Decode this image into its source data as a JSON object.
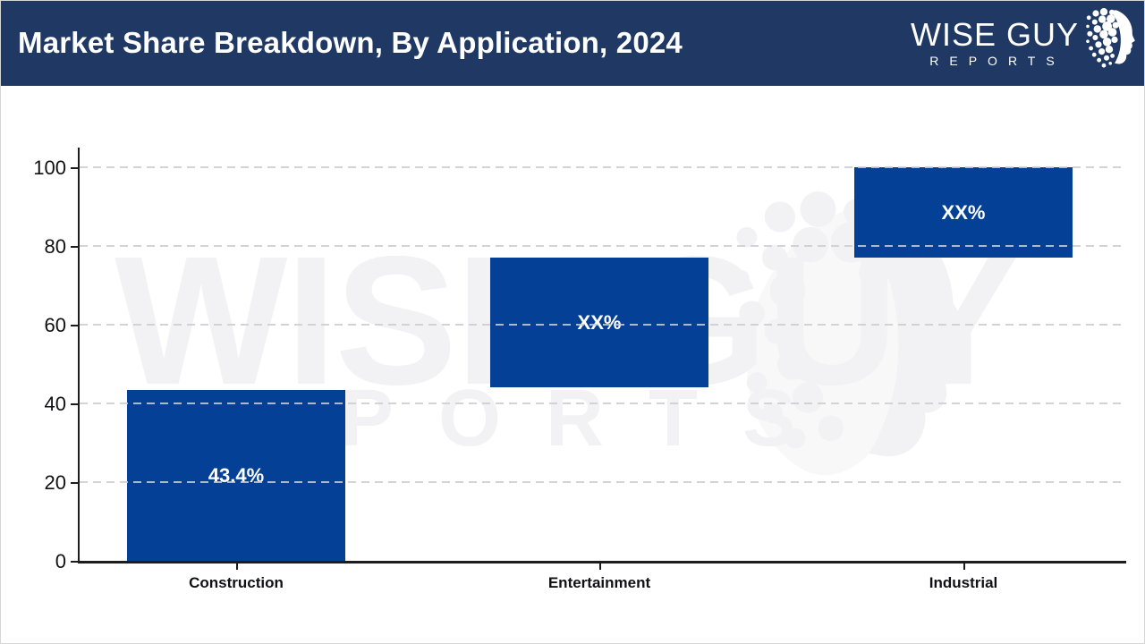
{
  "header": {
    "title": "Market Share Breakdown, By Application, 2024",
    "bg_color": "#1f3864",
    "logo": {
      "line1": "WISE GUY",
      "line2": "REPORTS"
    }
  },
  "watermark": {
    "line1": "WISE GUY",
    "line2": "REPORTS"
  },
  "chart_data": {
    "type": "bar",
    "subtype": "floating-waterfall-bars",
    "title": "Market Share Breakdown, By Application, 2024",
    "categories": [
      "Construction",
      "Entertainment",
      "Industrial"
    ],
    "series": [
      {
        "name": "Market Share (%)",
        "ranges": [
          [
            0,
            43.4
          ],
          [
            44,
            77
          ],
          [
            77,
            100
          ]
        ],
        "labels": [
          "43.4%",
          "XX%",
          "XX%"
        ]
      }
    ],
    "xlabel": "",
    "ylabel": "",
    "ylim": [
      0,
      105
    ],
    "yticks": [
      0,
      20,
      40,
      60,
      80,
      100
    ],
    "grid": "horizontal-dashed",
    "legend": "none",
    "bar_color": "#044096",
    "bar_label_color": "#ffffff",
    "axis_color": "#1c1c1c",
    "gridline_color": "#cdcdcf",
    "watermark_color": "#f2f2f4"
  }
}
